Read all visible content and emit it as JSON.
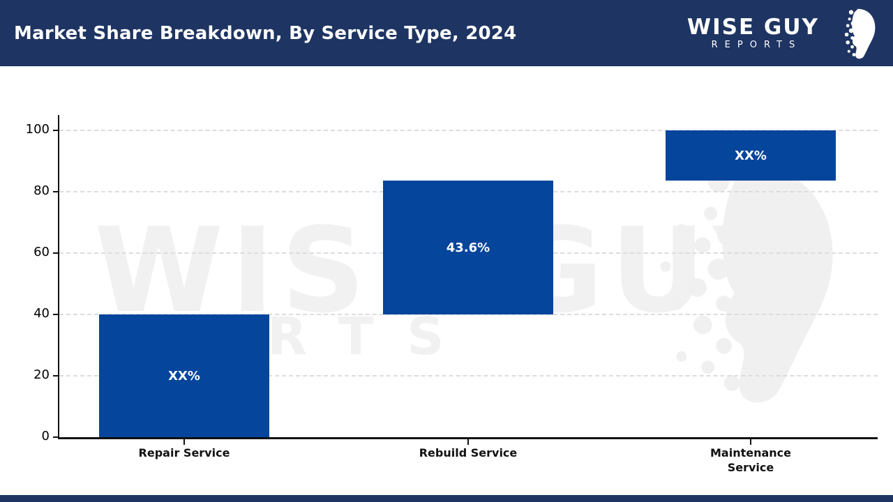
{
  "header": {
    "title": "Market Share Breakdown, By Service Type, 2024",
    "logo": {
      "line1": "WISE GUY",
      "line2": "REPORTS"
    }
  },
  "watermark": {
    "line1": "WISE GUY",
    "line2": "PORTS"
  },
  "colors": {
    "header_bg": "#1e3462",
    "bar_blue": "#05459c",
    "grid_gray": "#dcdcdc",
    "axis_black": "#111111",
    "watermark_gray": "#f1f1f2"
  },
  "chart_data": {
    "type": "bar",
    "subtype": "waterfall-floating-bars",
    "title": "Market Share Breakdown, By Service Type, 2024",
    "categories": [
      "Repair Service",
      "Rebuild Service",
      "Maintenance Service"
    ],
    "category_lines": [
      [
        "Repair Service"
      ],
      [
        "Rebuild Service"
      ],
      [
        "Maintenance",
        "Service"
      ]
    ],
    "bars": [
      {
        "category": "Repair Service",
        "start": 0,
        "end": 40,
        "label": "XX%"
      },
      {
        "category": "Rebuild Service",
        "start": 40,
        "end": 83.6,
        "label": "43.6%"
      },
      {
        "category": "Maintenance Service",
        "start": 83.6,
        "end": 100,
        "label": "XX%"
      }
    ],
    "yticks": [
      0,
      20,
      40,
      60,
      80,
      100
    ],
    "ylim": [
      0,
      105
    ],
    "xlabel": "",
    "ylabel": "",
    "grid": "horizontal-dashed",
    "legend": "none",
    "bar_color": "#05459c"
  }
}
